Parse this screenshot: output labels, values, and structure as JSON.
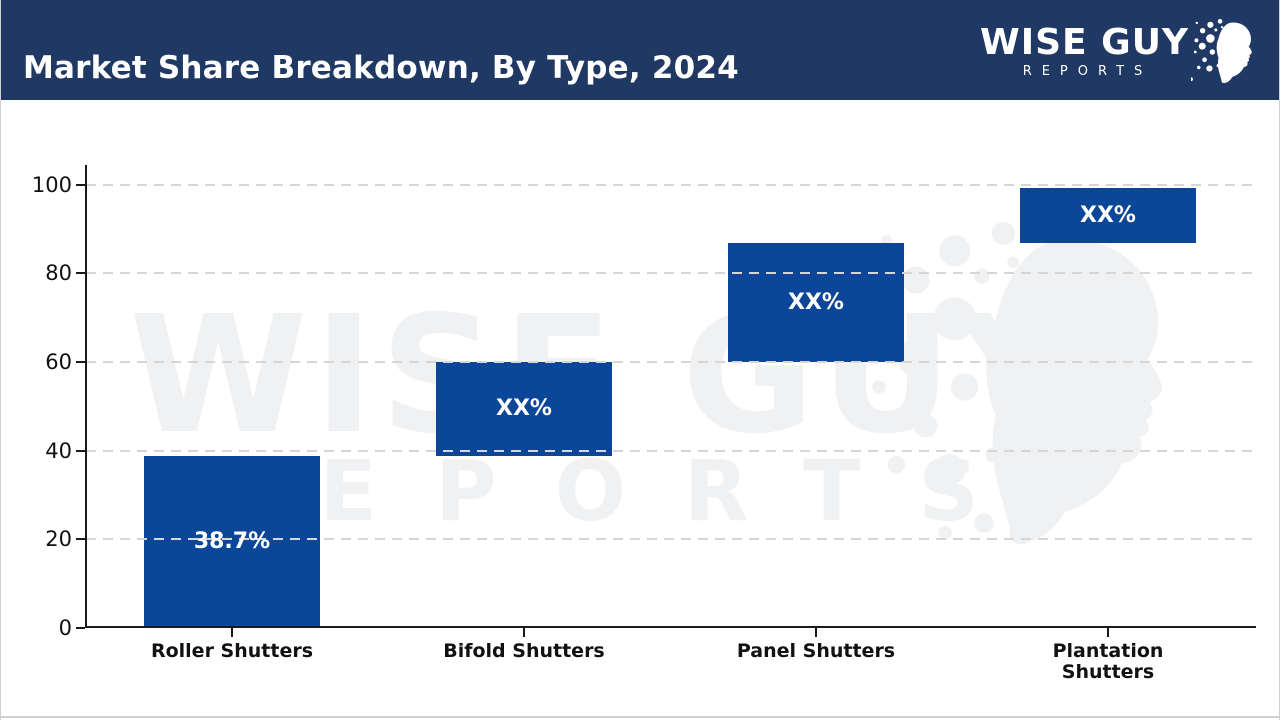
{
  "header": {
    "title": "Market Share Breakdown, By Type, 2024",
    "logo": {
      "line1": "WISE GUY",
      "line2": "REPORTS"
    }
  },
  "watermark": {
    "line1": "WISE GUY",
    "line2": "REPORTS"
  },
  "colors": {
    "header_bg": "#1f3864",
    "bar": "#0b4699",
    "grid": "#d6d6d6",
    "axis": "#1a1a1a",
    "bar_label_text": "#ffffff",
    "watermark": "#f0f1f3"
  },
  "chart_data": {
    "type": "bar",
    "subtype": "waterfall",
    "title": "Market Share Breakdown, By Type, 2024",
    "categories": [
      "Roller Shutters",
      "Bifold Shutters",
      "Panel Shutters",
      "Plantation Shutters"
    ],
    "bars": [
      {
        "label": "38.7%",
        "start": 0,
        "end": 38.7
      },
      {
        "label": "XX%",
        "start": 38.7,
        "end": 60
      },
      {
        "label": "XX%",
        "start": 60,
        "end": 86.7
      },
      {
        "label": "XX%",
        "start": 86.7,
        "end": 99.3
      }
    ],
    "yticks": [
      0,
      20,
      40,
      60,
      80,
      100
    ],
    "ylim": [
      0,
      105
    ],
    "xlabel": "",
    "ylabel": "",
    "grid": "horizontal-dashed",
    "legend": "none"
  }
}
